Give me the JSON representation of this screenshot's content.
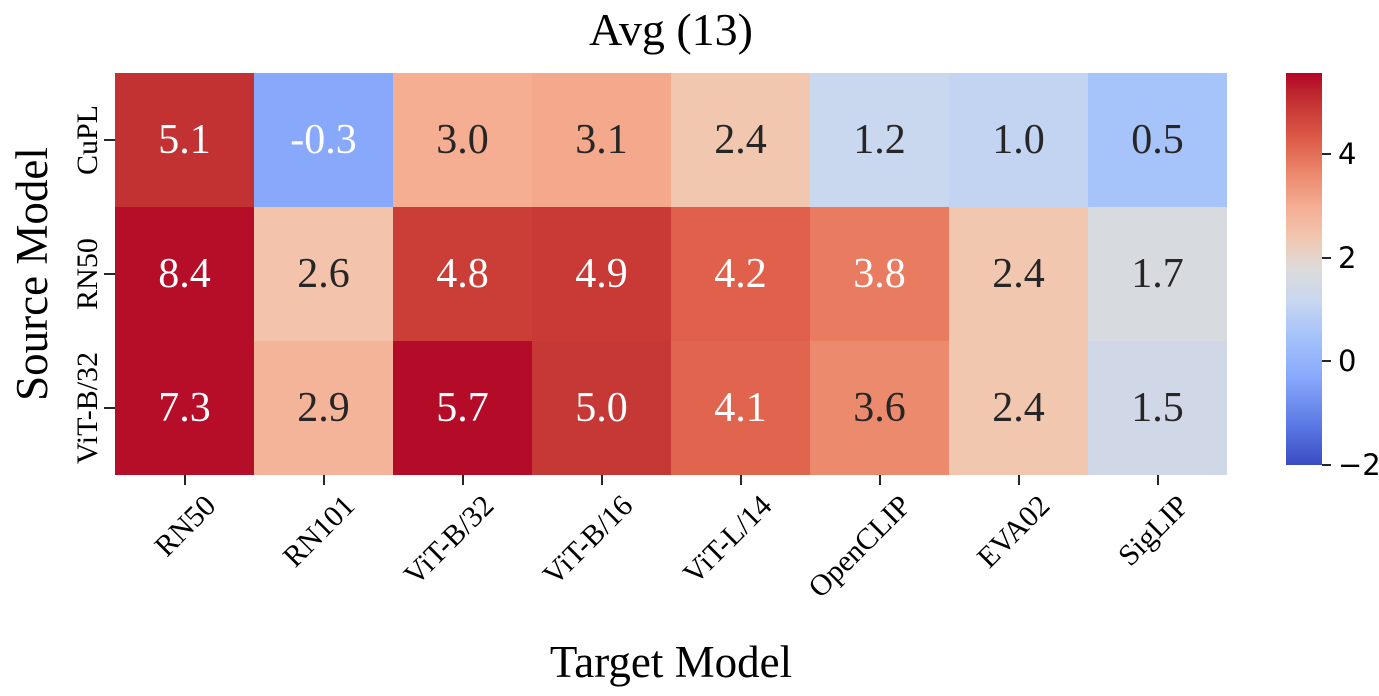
{
  "chart_data": {
    "type": "heatmap",
    "title": "Avg (13)",
    "xlabel": "Target Model",
    "ylabel": "Source Model",
    "x_categories": [
      "RN50",
      "RN101",
      "ViT-B/32",
      "ViT-B/16",
      "ViT-L/14",
      "OpenCLIP",
      "EVA02",
      "SigLIP"
    ],
    "y_categories": [
      "CuPL",
      "RN50",
      "ViT-B/32"
    ],
    "values": [
      [
        5.1,
        -0.3,
        3.0,
        3.1,
        2.4,
        1.2,
        1.0,
        0.5
      ],
      [
        8.4,
        2.6,
        4.8,
        4.9,
        4.2,
        3.8,
        2.4,
        1.7
      ],
      [
        7.3,
        2.9,
        5.7,
        5.0,
        4.1,
        3.6,
        2.4,
        1.5
      ]
    ],
    "value_labels": [
      [
        "5.1",
        "-0.3",
        "3.0",
        "3.1",
        "2.4",
        "1.2",
        "1.0",
        "0.5"
      ],
      [
        "8.4",
        "2.6",
        "4.8",
        "4.9",
        "4.2",
        "3.8",
        "2.4",
        "1.7"
      ],
      [
        "7.3",
        "2.9",
        "5.7",
        "5.0",
        "4.1",
        "3.6",
        "2.4",
        "1.5"
      ]
    ],
    "cell_colors": [
      [
        "#c33232",
        "#88a9fb",
        "#f5ae92",
        "#f4a98c",
        "#f1c7b0",
        "#c9d7ef",
        "#c2d4f2",
        "#a6c3fa"
      ],
      [
        "#b60d28",
        "#f3c3ab",
        "#cb3e38",
        "#c93a36",
        "#e0604b",
        "#e97b60",
        "#f1c7b0",
        "#d7dade"
      ],
      [
        "#b60d28",
        "#f4b49a",
        "#b40c28",
        "#c63836",
        "#e1644f",
        "#ec8a6e",
        "#f1c7b0",
        "#d0d8e7"
      ]
    ],
    "cell_text_white": [
      [
        true,
        true,
        false,
        false,
        false,
        false,
        false,
        false
      ],
      [
        true,
        false,
        true,
        true,
        true,
        true,
        false,
        false
      ],
      [
        true,
        false,
        true,
        true,
        true,
        false,
        false,
        false
      ]
    ],
    "annotation_text_colors": {
      "light": "#ffffff",
      "dark": "#262626"
    },
    "colormap": "coolwarm",
    "grid_on": false,
    "legend_position": "right-colorbar",
    "colorbar": {
      "vmin": -2,
      "vmax": 5.56,
      "tick_values": [
        4,
        2,
        0,
        -2
      ],
      "tick_labels": [
        "4",
        "2",
        "0",
        "−2"
      ],
      "gradient_stops": [
        {
          "p": 0.0,
          "c": "#b40426"
        },
        {
          "p": 0.05,
          "c": "#bd252e"
        },
        {
          "p": 0.1,
          "c": "#cb3e38"
        },
        {
          "p": 0.18,
          "c": "#e0604b"
        },
        {
          "p": 0.26,
          "c": "#ec8a6e"
        },
        {
          "p": 0.34,
          "c": "#f4ad92"
        },
        {
          "p": 0.42,
          "c": "#f1c6af"
        },
        {
          "p": 0.5,
          "c": "#dcdbdb"
        },
        {
          "p": 0.58,
          "c": "#c9d7ef"
        },
        {
          "p": 0.67,
          "c": "#a6c3fa"
        },
        {
          "p": 0.775,
          "c": "#88a9fb"
        },
        {
          "p": 0.9,
          "c": "#5a78e4"
        },
        {
          "p": 1.0,
          "c": "#3b4cc0"
        }
      ]
    }
  }
}
